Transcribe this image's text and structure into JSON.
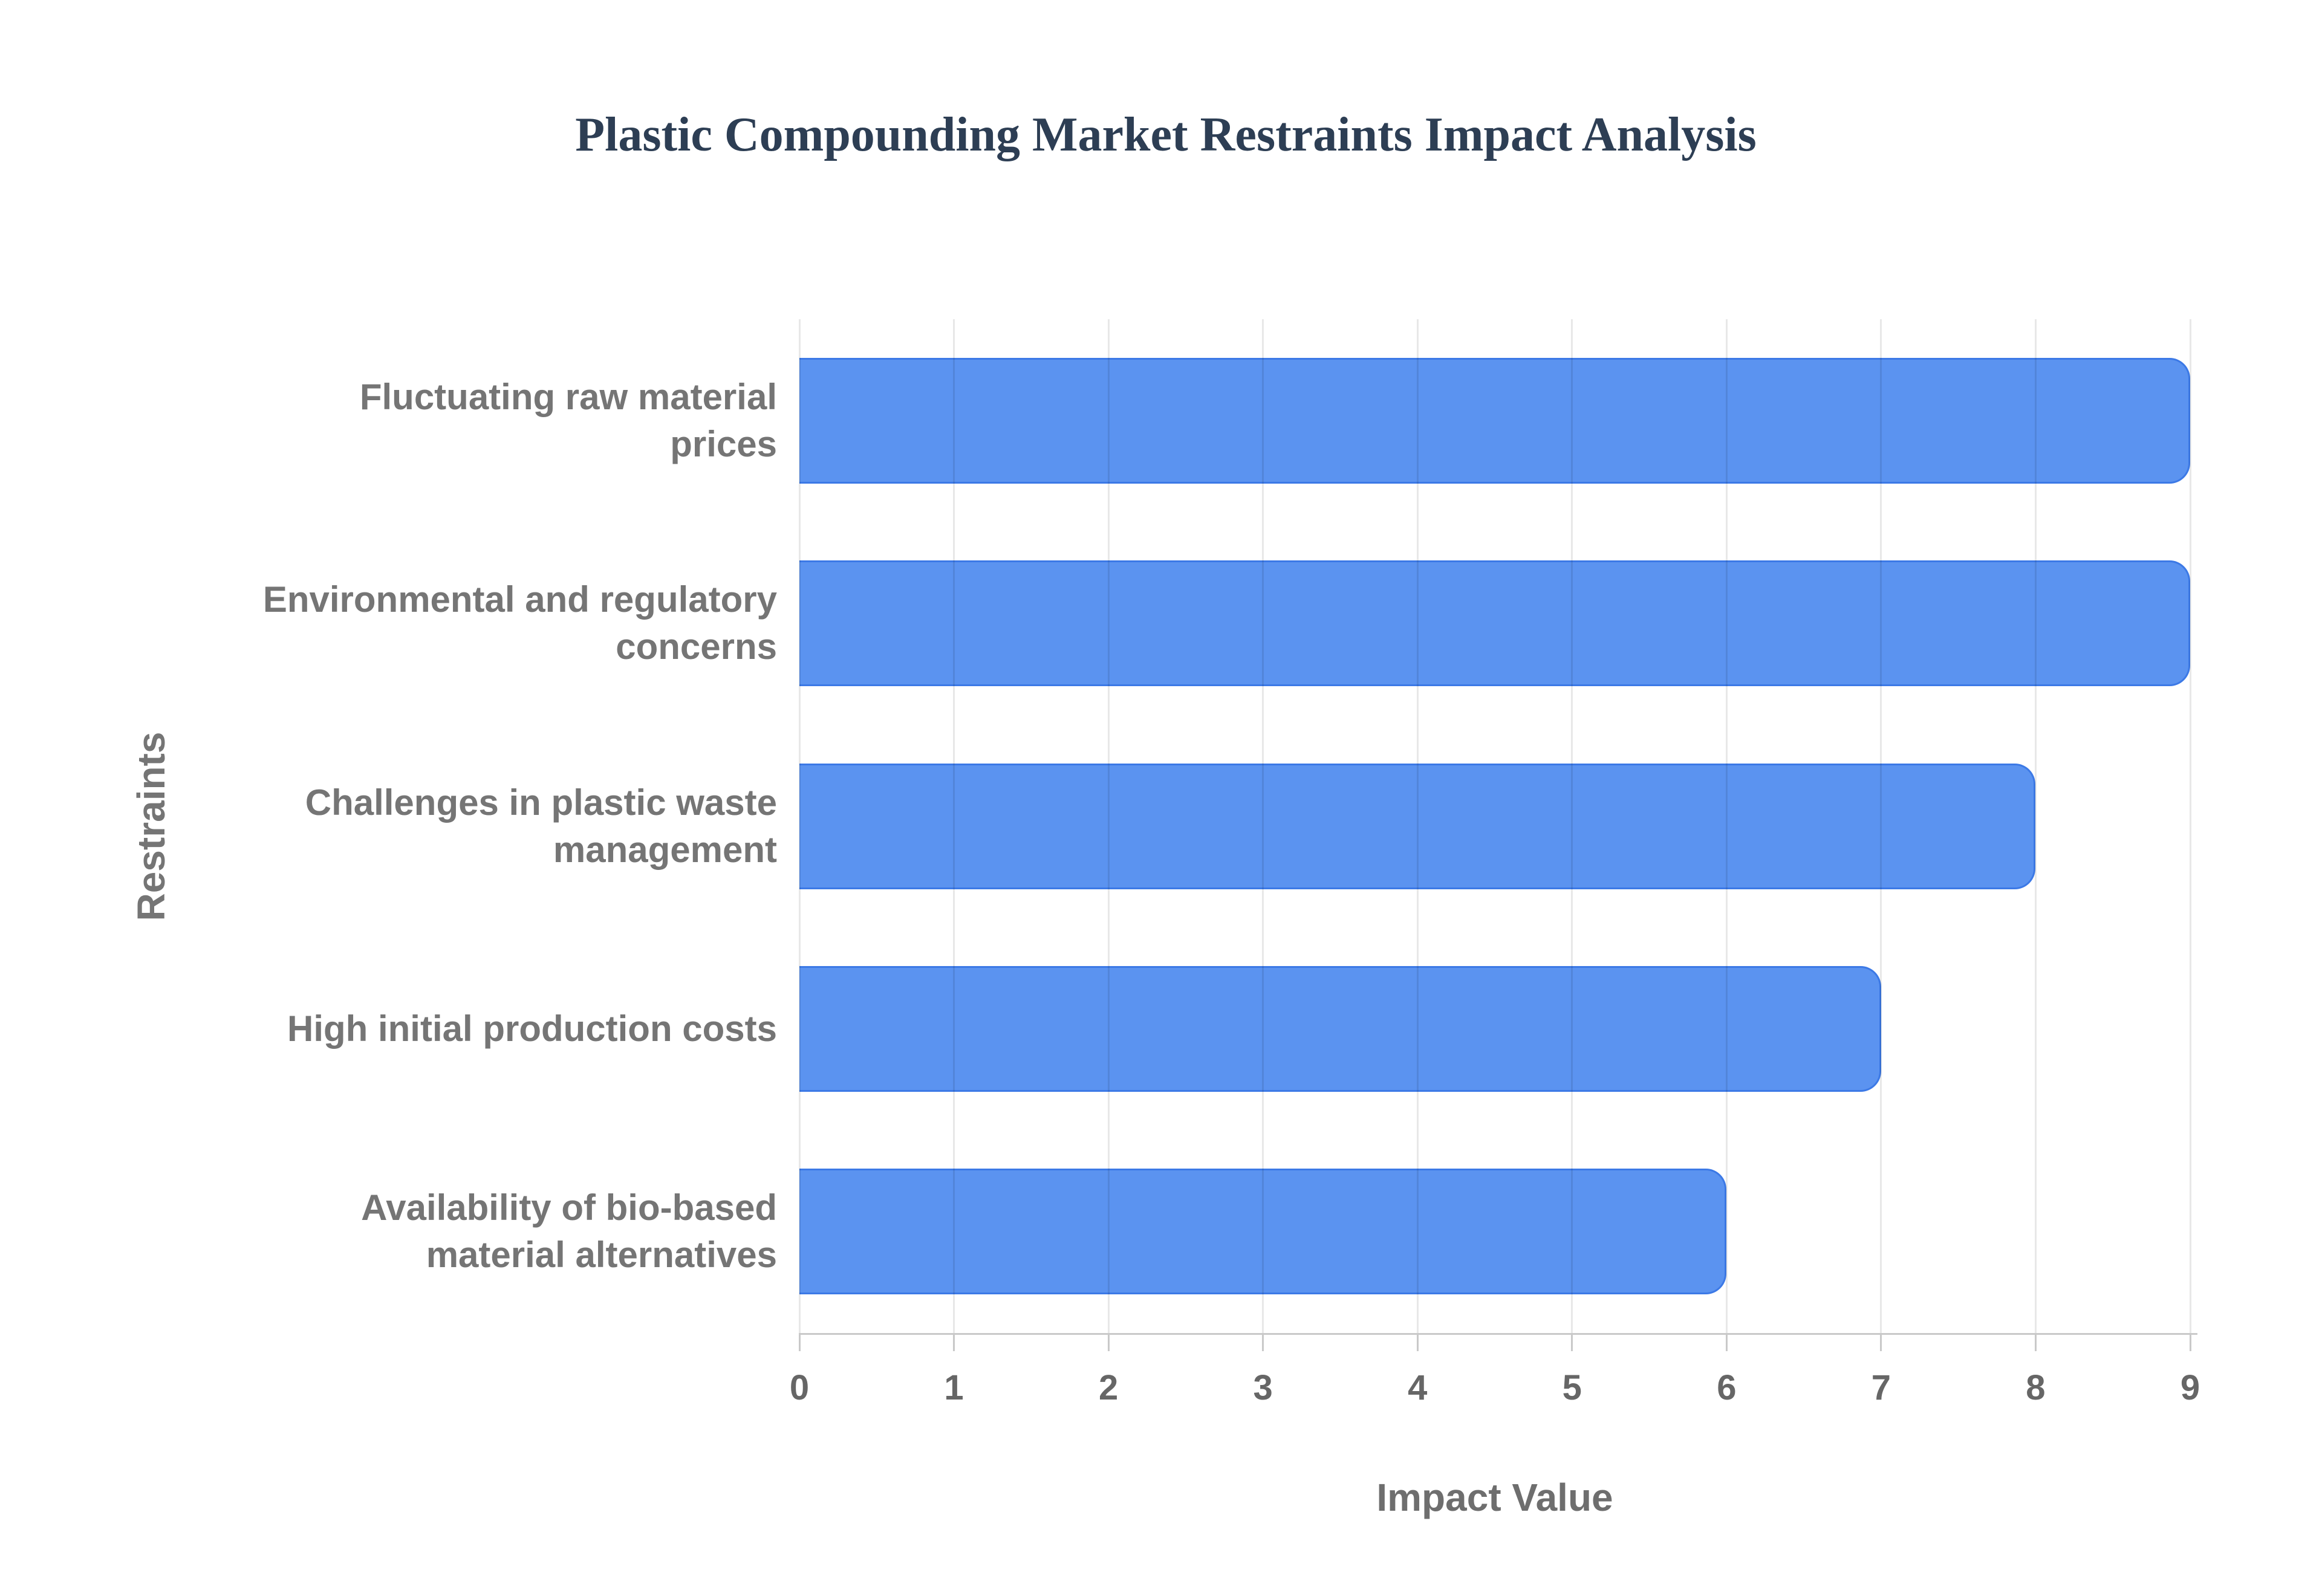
{
  "chart_data": {
    "type": "bar",
    "orientation": "horizontal",
    "title": "Plastic Compounding Market Restraints Impact Analysis",
    "xlabel": "Impact Value",
    "ylabel": "Restraints",
    "categories": [
      "Fluctuating raw material prices",
      "Environmental and regulatory concerns",
      "Challenges in plastic waste management",
      "High initial production costs",
      "Availability of bio-based material alternatives"
    ],
    "category_lines": [
      [
        "Fluctuating raw material",
        "prices"
      ],
      [
        "Environmental and regulatory",
        "concerns"
      ],
      [
        "Challenges in plastic waste",
        "management"
      ],
      [
        "High initial production costs"
      ],
      [
        "Availability of bio-based",
        "material alternatives"
      ]
    ],
    "values": [
      9,
      9,
      8,
      7,
      6
    ],
    "xlim": [
      0,
      9
    ],
    "xticks": [
      0,
      1,
      2,
      3,
      4,
      5,
      6,
      7,
      8,
      9
    ],
    "grid": "vertical",
    "legend": "none",
    "colors": {
      "bar_fill": "#5b93f0",
      "bar_border": "#3c79e6",
      "title_text": "#2d3e54",
      "label_text": "#757575",
      "tick_text": "#666666",
      "gridline": "#e6e6e6",
      "axis_line": "#c9c9c9",
      "background": "#ffffff"
    }
  }
}
